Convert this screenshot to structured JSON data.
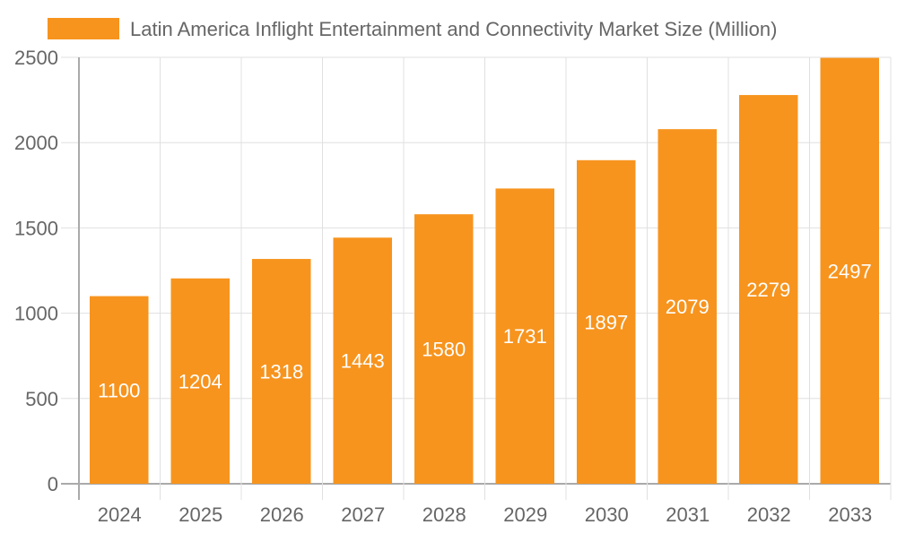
{
  "chart_data": {
    "type": "bar",
    "title": "",
    "xlabel": "",
    "ylabel": "",
    "categories": [
      "2024",
      "2025",
      "2026",
      "2027",
      "2028",
      "2029",
      "2030",
      "2031",
      "2032",
      "2033"
    ],
    "series": [
      {
        "name": "Latin America Inflight Entertainment and Connectivity Market Size (Million)",
        "values": [
          1100,
          1204,
          1318,
          1443,
          1580,
          1731,
          1897,
          2079,
          2279,
          2497
        ],
        "color": "#f7941e"
      }
    ],
    "ylim": [
      0,
      2500
    ],
    "yticks": [
      0,
      500,
      1000,
      1500,
      2000,
      2500
    ],
    "grid": true,
    "legend": "top",
    "data_labels": true,
    "colors": {
      "bar": "#f7941e",
      "grid": "#e0e0e0",
      "axis": "#aaaaaa",
      "text": "#666666",
      "label": "#ffffff"
    }
  }
}
